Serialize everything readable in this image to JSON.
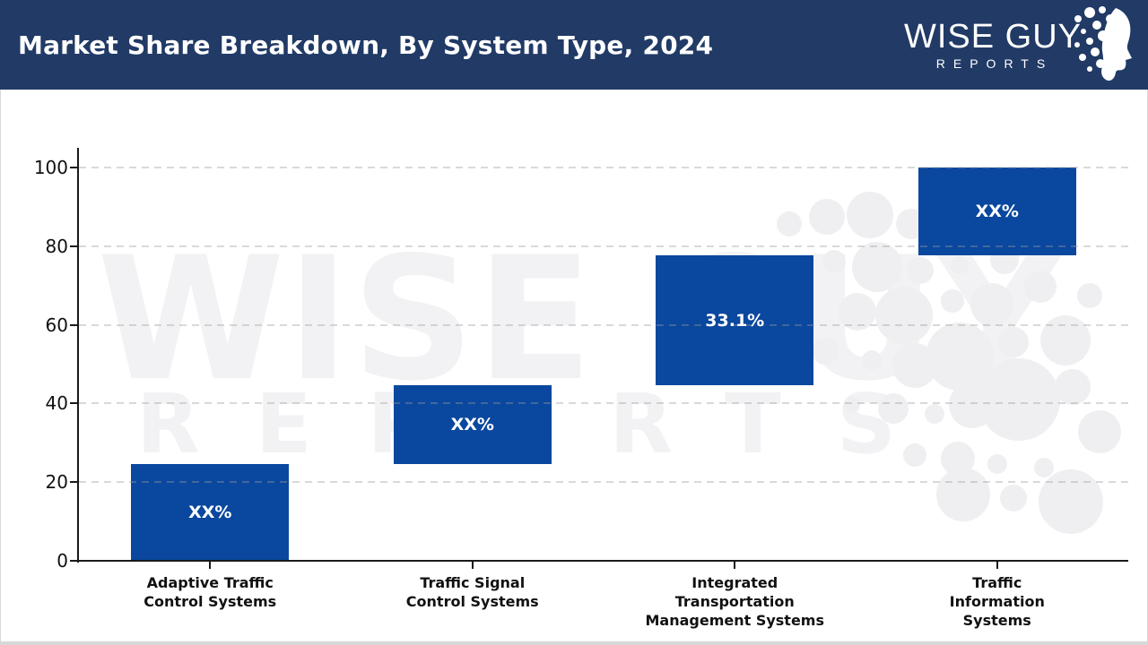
{
  "header": {
    "title": "Market Share Breakdown, By System Type, 2024",
    "logo": {
      "line1": "WISE GUY",
      "line2": "REPORTS"
    }
  },
  "watermark": {
    "line1": "WISE GUY",
    "line2": "REPORTS"
  },
  "colors": {
    "header_bg": "#213A66",
    "bar": "#0A479E",
    "axis": "#1A1A1A",
    "gridline": "#DEDEDE",
    "watermark": "#F2F2F4",
    "title_text": "#FFFFFF",
    "bar_label_text": "#FFFFFF"
  },
  "chart_data": {
    "type": "bar",
    "subtype": "waterfall-floating-bars",
    "title": "Market Share Breakdown, By System Type, 2024",
    "categories": [
      "Adaptive Traffic\nControl Systems",
      "Traffic Signal\nControl Systems",
      "Integrated\nTransportation\nManagement Systems",
      "Traffic\nInformation\nSystems"
    ],
    "bars": [
      {
        "start": 0,
        "end": 24.6,
        "value": 24.6,
        "label": "XX%"
      },
      {
        "start": 24.6,
        "end": 44.6,
        "value": 20.0,
        "label": "XX%"
      },
      {
        "start": 44.6,
        "end": 77.7,
        "value": 33.1,
        "label": "33.1%"
      },
      {
        "start": 77.7,
        "end": 100,
        "value": 22.3,
        "label": "XX%"
      }
    ],
    "xlabel": "",
    "ylabel": "",
    "ylim": [
      0,
      100
    ],
    "yticks": [
      0,
      20,
      40,
      60,
      80,
      100
    ],
    "grid": "horizontal-dashed, drawn over bars",
    "legend": "none"
  }
}
